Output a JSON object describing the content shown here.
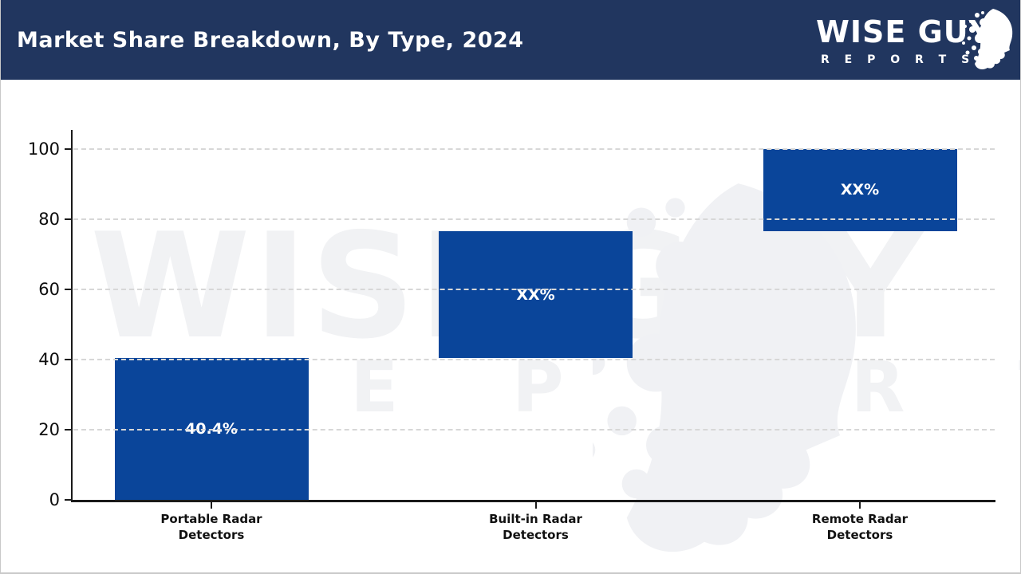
{
  "header": {
    "title": "Market Share Breakdown, By Type, 2024",
    "bg_color": "#21365f",
    "logo": {
      "line1": "WISE GUY",
      "line2": "R E P O R T S"
    }
  },
  "watermark": {
    "line1": "WISE GUY",
    "line2": "R E P O R T S"
  },
  "chart_data": {
    "type": "bar",
    "variant": "waterfall-floating-bars",
    "title": "Market Share Breakdown, By Type, 2024",
    "categories": [
      "Portable Radar Detectors",
      "Built-in Radar Detectors",
      "Remote Radar Detectors"
    ],
    "bars": [
      {
        "category": "Portable Radar Detectors",
        "label_lines": [
          "Portable Radar",
          "Detectors"
        ],
        "start": 0,
        "end": 40.4,
        "label": "40.4%"
      },
      {
        "category": "Built-in Radar Detectors",
        "label_lines": [
          "Built-in Radar",
          "Detectors"
        ],
        "start": 40.4,
        "end": 76.6,
        "label": "XX%"
      },
      {
        "category": "Remote Radar Detectors",
        "label_lines": [
          "Remote Radar",
          "Detectors"
        ],
        "start": 76.6,
        "end": 100,
        "label": "XX%"
      }
    ],
    "bar_color": "#0a459a",
    "bar_label_color": "#ffffff",
    "ylim": [
      0,
      100
    ],
    "yticks": [
      0,
      20,
      40,
      60,
      80,
      100
    ],
    "xlabel": "",
    "ylabel": "",
    "grid": "horizontal-dashed",
    "grid_above_bars": true,
    "legend": "none"
  }
}
